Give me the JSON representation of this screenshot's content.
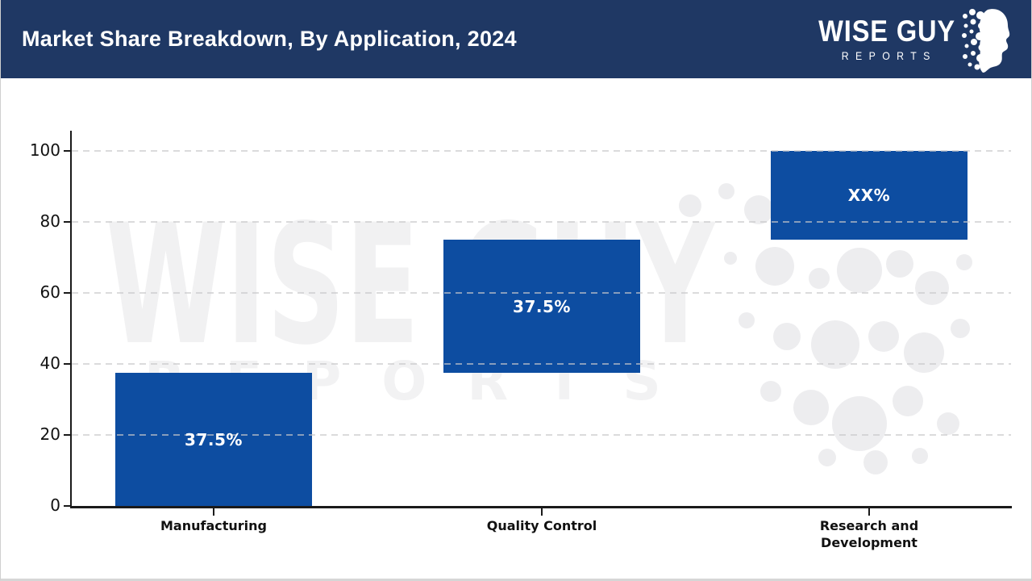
{
  "header": {
    "title": "Market Share Breakdown, By Application, 2024",
    "bg_color": "#1f3864",
    "logo_line1": "WISE GUY",
    "logo_line2": "REPORTS"
  },
  "watermark": {
    "line1": "WISE GUY",
    "line2": "REPORTS"
  },
  "chart_data": {
    "type": "bar",
    "subtype": "floating-waterfall",
    "title": "Market Share Breakdown, By Application, 2024",
    "categories": [
      "Manufacturing",
      "Quality Control",
      "Research and Development"
    ],
    "xtick_labels": [
      "Manufacturing",
      "Quality Control",
      "Research and\nDevelopment"
    ],
    "segments": [
      {
        "category": "Manufacturing",
        "start": 0,
        "end": 37.5,
        "label": "37.5%"
      },
      {
        "category": "Quality Control",
        "start": 37.5,
        "end": 75,
        "label": "37.5%"
      },
      {
        "category": "Research and Development",
        "start": 75,
        "end": 100,
        "label": "XX%"
      }
    ],
    "yticks": [
      0,
      20,
      40,
      60,
      80,
      100
    ],
    "ylim": [
      0,
      100
    ],
    "xlabel": "",
    "ylabel": "",
    "bar_color": "#0d4da1",
    "grid": {
      "axis": "y",
      "style": "dashed",
      "drawn_over_bars": true
    },
    "legend": null
  }
}
